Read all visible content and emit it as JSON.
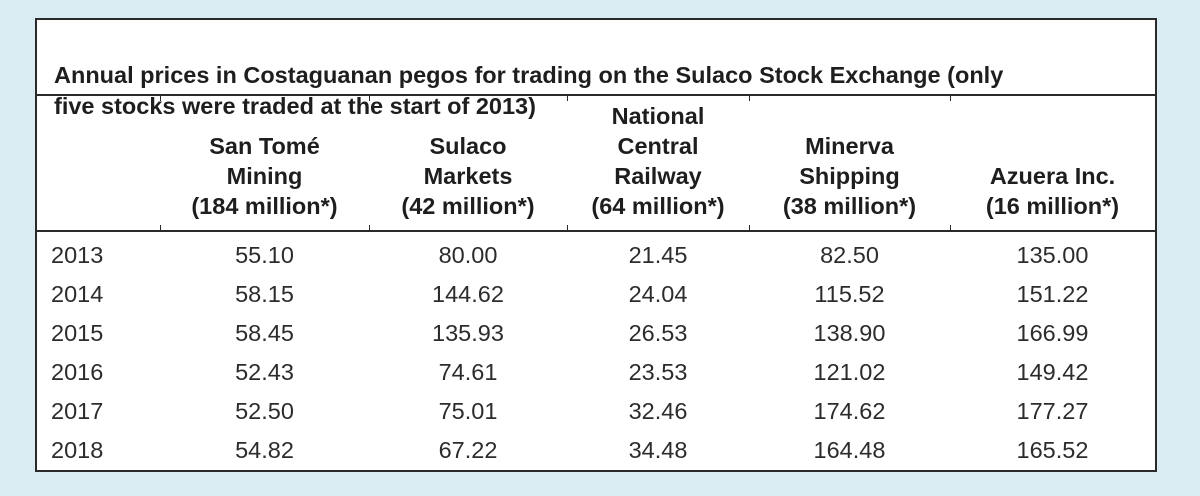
{
  "page": {
    "background_color": "#d8ecf2",
    "surface_color": "#ffffff",
    "border_color": "#2a2a2a",
    "text_color": "#1e1e1e"
  },
  "chart_data": {
    "type": "table",
    "title": "Annual prices in Costaguanan pegos for trading on the Sulaco Stock Exchange (only\nfive stocks were traded at the start of 2013)",
    "columns": [
      {
        "key": "san-tome-mining",
        "header": "San Tomé\nMining\n(184 million*)"
      },
      {
        "key": "sulaco-markets",
        "header": "Sulaco\nMarkets\n(42 million*)"
      },
      {
        "key": "national-central-railway",
        "header": "National\nCentral\nRailway\n(64 million*)"
      },
      {
        "key": "minerva-shipping",
        "header": "Minerva\nShipping\n(38 million*)"
      },
      {
        "key": "azuera-inc",
        "header": "Azuera Inc.\n(16 million*)"
      }
    ],
    "years": [
      "2013",
      "2014",
      "2015",
      "2016",
      "2017",
      "2018"
    ],
    "series": [
      {
        "name": "San Tomé Mining",
        "shares_outstanding": "184 million*",
        "values": [
          55.1,
          58.15,
          58.45,
          52.43,
          52.5,
          54.82
        ]
      },
      {
        "name": "Sulaco Markets",
        "shares_outstanding": "42 million*",
        "values": [
          80.0,
          144.62,
          135.93,
          74.61,
          75.01,
          67.22
        ]
      },
      {
        "name": "National Central Railway",
        "shares_outstanding": "64 million*",
        "values": [
          21.45,
          24.04,
          26.53,
          23.53,
          32.46,
          34.48
        ]
      },
      {
        "name": "Minerva Shipping",
        "shares_outstanding": "38 million*",
        "values": [
          82.5,
          115.52,
          138.9,
          121.02,
          174.62,
          164.48
        ]
      },
      {
        "name": "Azuera Inc.",
        "shares_outstanding": "16 million*",
        "values": [
          135.0,
          151.22,
          166.99,
          149.42,
          177.27,
          165.52
        ]
      }
    ]
  }
}
